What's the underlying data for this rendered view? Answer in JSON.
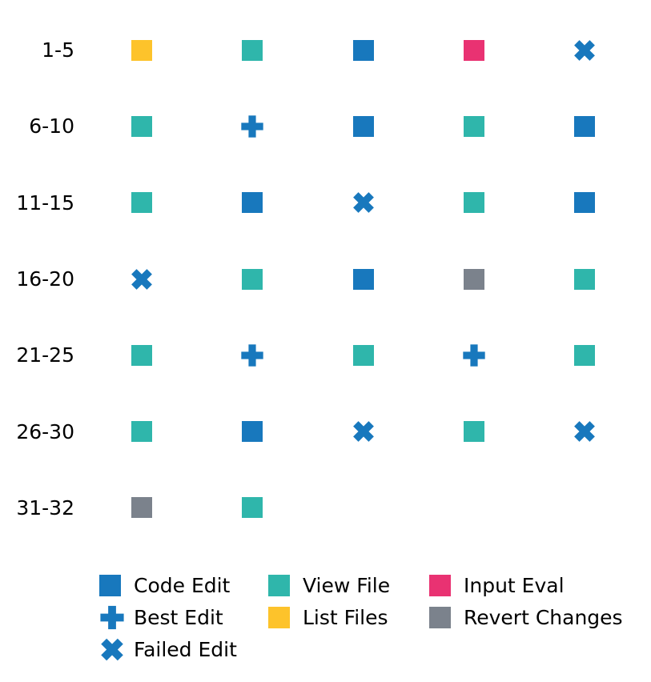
{
  "chart_data": {
    "type": "scatter",
    "title": "",
    "description": "Categorical grid of agent actions per step group; rows are step ranges, each row shows up to 5 action markers",
    "columns_per_row": 5,
    "grid": "off",
    "legend_position": "bottom",
    "rows": [
      {
        "label": "1-5",
        "markers": [
          "list_files",
          "view_file",
          "code_edit",
          "input_eval",
          "failed_edit"
        ]
      },
      {
        "label": "6-10",
        "markers": [
          "view_file",
          "best_edit",
          "code_edit",
          "view_file",
          "code_edit"
        ]
      },
      {
        "label": "11-15",
        "markers": [
          "view_file",
          "code_edit",
          "failed_edit",
          "view_file",
          "code_edit"
        ]
      },
      {
        "label": "16-20",
        "markers": [
          "failed_edit",
          "view_file",
          "code_edit",
          "revert_changes",
          "view_file"
        ]
      },
      {
        "label": "21-25",
        "markers": [
          "view_file",
          "best_edit",
          "view_file",
          "best_edit",
          "view_file"
        ]
      },
      {
        "label": "26-30",
        "markers": [
          "view_file",
          "code_edit",
          "failed_edit",
          "view_file",
          "failed_edit"
        ]
      },
      {
        "label": "31-32",
        "markers": [
          "revert_changes",
          "view_file"
        ]
      }
    ],
    "marker_styles": {
      "code_edit": {
        "label": "Code Edit",
        "shape": "square",
        "color": "#1878bd"
      },
      "view_file": {
        "label": "View File",
        "shape": "square",
        "color": "#2fb6ab"
      },
      "input_eval": {
        "label": "Input Eval",
        "shape": "square",
        "color": "#e93272"
      },
      "best_edit": {
        "label": "Best Edit",
        "shape": "plus",
        "color": "#1878bd"
      },
      "list_files": {
        "label": "List Files",
        "shape": "square",
        "color": "#fdc32b"
      },
      "revert_changes": {
        "label": "Revert Changes",
        "shape": "square",
        "color": "#7b828c"
      },
      "failed_edit": {
        "label": "Failed Edit",
        "shape": "cross",
        "color": "#1878bd"
      }
    },
    "legend_order": [
      "code_edit",
      "view_file",
      "input_eval",
      "best_edit",
      "list_files",
      "revert_changes",
      "failed_edit"
    ],
    "text_color": "#000000",
    "background_color": "#ffffff"
  }
}
